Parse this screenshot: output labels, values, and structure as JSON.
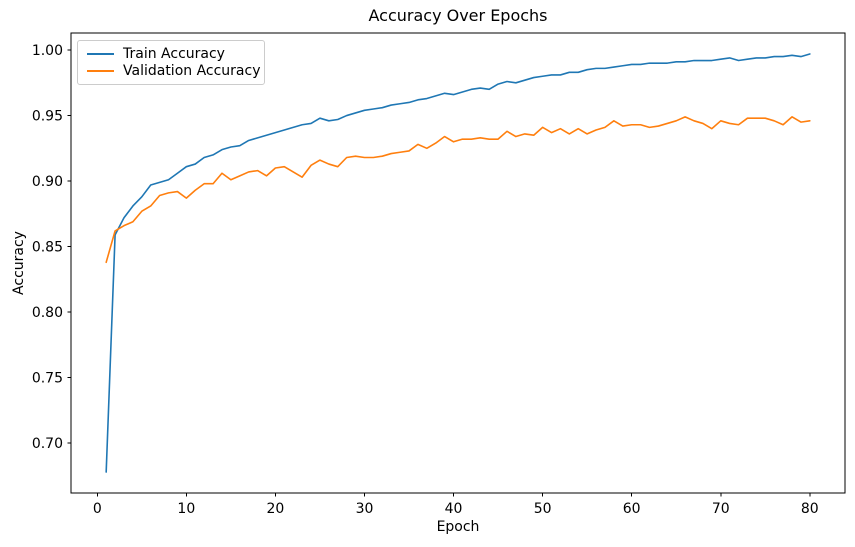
{
  "figure_title": "Accuracy Over Epochs",
  "chart_data": {
    "type": "line",
    "title": "Accuracy Over Epochs",
    "xlabel": "Epoch",
    "ylabel": "Accuracy",
    "grid": false,
    "background": "#ffffff",
    "axis_color": "#000000",
    "legend": {
      "position": "upper left",
      "border_color": "#cccccc",
      "entries": [
        "Train Accuracy",
        "Validation Accuracy"
      ]
    },
    "xlim": [
      -2.95,
      83.95
    ],
    "ylim": [
      0.662,
      1.013
    ],
    "xticks": {
      "values": [
        0,
        10,
        20,
        30,
        40,
        50,
        60,
        70,
        80
      ],
      "labels": [
        "0",
        "10",
        "20",
        "30",
        "40",
        "50",
        "60",
        "70",
        "80"
      ]
    },
    "yticks": {
      "values": [
        0.7,
        0.75,
        0.8,
        0.85,
        0.9,
        0.95,
        1.0
      ],
      "labels": [
        "0.70",
        "0.75",
        "0.80",
        "0.85",
        "0.90",
        "0.95",
        "1.00"
      ]
    },
    "x": [
      1,
      2,
      3,
      4,
      5,
      6,
      7,
      8,
      9,
      10,
      11,
      12,
      13,
      14,
      15,
      16,
      17,
      18,
      19,
      20,
      21,
      22,
      23,
      24,
      25,
      26,
      27,
      28,
      29,
      30,
      31,
      32,
      33,
      34,
      35,
      36,
      37,
      38,
      39,
      40,
      41,
      42,
      43,
      44,
      45,
      46,
      47,
      48,
      49,
      50,
      51,
      52,
      53,
      54,
      55,
      56,
      57,
      58,
      59,
      60,
      61,
      62,
      63,
      64,
      65,
      66,
      67,
      68,
      69,
      70,
      71,
      72,
      73,
      74,
      75,
      76,
      77,
      78,
      79,
      80
    ],
    "series": [
      {
        "name": "Train Accuracy",
        "color": "#1f77b4",
        "values": [
          0.678,
          0.859,
          0.872,
          0.881,
          0.888,
          0.897,
          0.899,
          0.901,
          0.906,
          0.911,
          0.913,
          0.918,
          0.92,
          0.924,
          0.926,
          0.927,
          0.931,
          0.933,
          0.935,
          0.937,
          0.939,
          0.941,
          0.943,
          0.944,
          0.948,
          0.946,
          0.947,
          0.95,
          0.952,
          0.954,
          0.955,
          0.956,
          0.958,
          0.959,
          0.96,
          0.962,
          0.963,
          0.965,
          0.967,
          0.966,
          0.968,
          0.97,
          0.971,
          0.97,
          0.974,
          0.976,
          0.975,
          0.977,
          0.979,
          0.98,
          0.981,
          0.981,
          0.983,
          0.983,
          0.985,
          0.986,
          0.986,
          0.987,
          0.988,
          0.989,
          0.989,
          0.99,
          0.99,
          0.99,
          0.991,
          0.991,
          0.992,
          0.992,
          0.992,
          0.993,
          0.994,
          0.992,
          0.993,
          0.994,
          0.994,
          0.995,
          0.995,
          0.996,
          0.995,
          0.997
        ]
      },
      {
        "name": "Validation Accuracy",
        "color": "#ff7f0e",
        "values": [
          0.838,
          0.862,
          0.866,
          0.869,
          0.877,
          0.881,
          0.889,
          0.891,
          0.892,
          0.887,
          0.893,
          0.898,
          0.898,
          0.906,
          0.901,
          0.904,
          0.907,
          0.908,
          0.904,
          0.91,
          0.911,
          0.907,
          0.903,
          0.912,
          0.916,
          0.913,
          0.911,
          0.918,
          0.919,
          0.918,
          0.918,
          0.919,
          0.921,
          0.922,
          0.923,
          0.928,
          0.925,
          0.929,
          0.934,
          0.93,
          0.932,
          0.932,
          0.933,
          0.932,
          0.932,
          0.938,
          0.934,
          0.936,
          0.935,
          0.941,
          0.937,
          0.94,
          0.936,
          0.94,
          0.936,
          0.939,
          0.941,
          0.946,
          0.942,
          0.943,
          0.943,
          0.941,
          0.942,
          0.944,
          0.946,
          0.949,
          0.946,
          0.944,
          0.94,
          0.946,
          0.944,
          0.943,
          0.948,
          0.948,
          0.948,
          0.946,
          0.943,
          0.949,
          0.945,
          0.946
        ]
      }
    ]
  }
}
